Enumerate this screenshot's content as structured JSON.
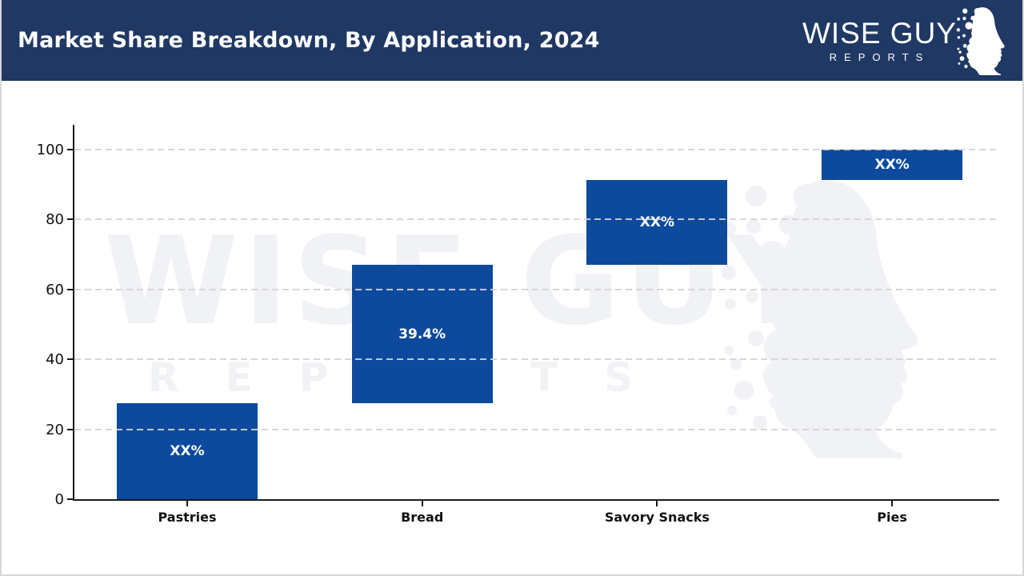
{
  "header": {
    "title": "Market Share Breakdown, By Application, 2024",
    "logo": {
      "line1": "WISE GUY",
      "line2": "REPORTS"
    }
  },
  "watermark": {
    "line1": "WISE GUY",
    "line2": "REPORTS"
  },
  "colors": {
    "header_bg": "#1f3864",
    "bar_blue": "#0d4a9e",
    "grid_gray": "#d4d4d4",
    "axis_black": "#1a1a1a",
    "watermark_gray": "#f1f2f5",
    "bar_label_white": "#ffffff"
  },
  "chart_data": {
    "type": "bar",
    "subtype": "waterfall-floating-bars",
    "title": "Market Share Breakdown, By Application, 2024",
    "categories": [
      "Pastries",
      "Bread",
      "Savory Snacks",
      "Pies"
    ],
    "segments": [
      {
        "category": "Pastries",
        "start": 0,
        "end": 27.5,
        "value": 27.5,
        "label": "XX%"
      },
      {
        "category": "Bread",
        "start": 27.5,
        "end": 66.9,
        "value": 39.4,
        "label": "39.4%"
      },
      {
        "category": "Savory Snacks",
        "start": 66.9,
        "end": 91.2,
        "value": 24.3,
        "label": "XX%"
      },
      {
        "category": "Pies",
        "start": 91.2,
        "end": 100,
        "value": 8.8,
        "label": "XX%"
      }
    ],
    "yticks": [
      0,
      20,
      40,
      60,
      80,
      100
    ],
    "ylim": [
      0,
      107
    ],
    "xlabel": "",
    "ylabel": "",
    "grid": "dashed-horizontal",
    "legend": "none",
    "bar_color": "#0d4a9e",
    "bar_label_color": "#ffffff"
  }
}
